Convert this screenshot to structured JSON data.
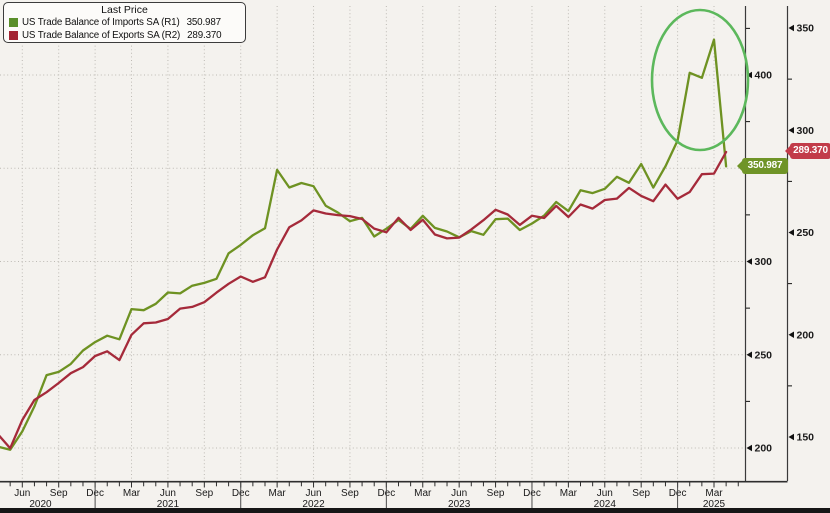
{
  "legend": {
    "title": "Last Price",
    "items": [
      {
        "label": "US Trade Balance of Imports SA  (R1)",
        "value": "350.987",
        "swatch_color": "#5a8f2a"
      },
      {
        "label": "US Trade Balance of Exports SA  (R2)",
        "value": "289.370",
        "swatch_color": "#a32433"
      }
    ]
  },
  "badges": {
    "imports_last": "350.987",
    "exports_last": "289.370",
    "imports_bg": "#6f9427",
    "exports_bg": "#c23b49"
  },
  "colors": {
    "background": "#f4f2ee",
    "grid": "#bdbab4",
    "axis": "#3a3a3a",
    "tick_text": "#1a1a1a",
    "annotation": "#5cb85c"
  },
  "chart_data": {
    "type": "line",
    "title": "Last Price",
    "frequency": "monthly",
    "x_months": [
      "2020-04",
      "2020-05",
      "2020-06",
      "2020-07",
      "2020-08",
      "2020-09",
      "2020-10",
      "2020-11",
      "2020-12",
      "2021-01",
      "2021-02",
      "2021-03",
      "2021-04",
      "2021-05",
      "2021-06",
      "2021-07",
      "2021-08",
      "2021-09",
      "2021-10",
      "2021-11",
      "2021-12",
      "2022-01",
      "2022-02",
      "2022-03",
      "2022-04",
      "2022-05",
      "2022-06",
      "2022-07",
      "2022-08",
      "2022-09",
      "2022-10",
      "2022-11",
      "2022-12",
      "2023-01",
      "2023-02",
      "2023-03",
      "2023-04",
      "2023-05",
      "2023-06",
      "2023-07",
      "2023-08",
      "2023-09",
      "2023-10",
      "2023-11",
      "2023-12",
      "2024-01",
      "2024-02",
      "2024-03",
      "2024-04",
      "2024-05",
      "2024-06",
      "2024-07",
      "2024-08",
      "2024-09",
      "2024-10",
      "2024-11",
      "2024-12",
      "2025-01",
      "2025-02",
      "2025-03",
      "2025-04"
    ],
    "series": [
      {
        "name": "US Trade Balance of Imports SA",
        "axis": "R1",
        "color": "#6e9222",
        "last_price": 350.987,
        "values": [
          200.7,
          199.1,
          208.9,
          222.3,
          239.1,
          240.8,
          245.1,
          252.3,
          256.8,
          260.2,
          258.3,
          274.5,
          273.9,
          277.3,
          283.4,
          282.9,
          287.0,
          288.5,
          290.7,
          304.4,
          308.9,
          314.1,
          317.8,
          349.1,
          339.7,
          342.1,
          340.4,
          329.9,
          326.3,
          321.6,
          323.4,
          313.4,
          317.6,
          322.3,
          317.5,
          324.5,
          318.0,
          316.1,
          313.0,
          316.3,
          314.3,
          322.7,
          323.0,
          316.9,
          320.4,
          324.6,
          331.9,
          327.0,
          338.2,
          336.7,
          339.0,
          345.4,
          342.2,
          352.3,
          339.6,
          351.1,
          364.9,
          401.2,
          398.5,
          419.0,
          350.987
        ]
      },
      {
        "name": "US Trade Balance of Exports SA",
        "axis": "R2",
        "color": "#a52a3a",
        "last_price": 289.37,
        "values": [
          151.3,
          144.5,
          158.3,
          168.1,
          171.9,
          176.4,
          181.2,
          184.2,
          189.6,
          191.9,
          187.6,
          200.0,
          205.6,
          206.0,
          207.7,
          212.8,
          213.6,
          215.9,
          220.6,
          224.9,
          228.5,
          225.9,
          228.1,
          241.7,
          252.6,
          255.9,
          260.8,
          259.3,
          258.5,
          258.0,
          256.6,
          251.9,
          250.1,
          257.2,
          251.2,
          256.2,
          249.0,
          247.1,
          247.5,
          251.5,
          256.0,
          261.1,
          258.8,
          253.7,
          258.2,
          257.1,
          263.0,
          257.6,
          263.7,
          261.7,
          265.9,
          266.6,
          271.8,
          267.9,
          265.3,
          273.4,
          266.5,
          269.8,
          278.5,
          278.8,
          289.37
        ]
      }
    ],
    "axes": {
      "right_inner": {
        "id": "R1",
        "for_series": "Imports",
        "major_ticks": [
          200,
          250,
          300,
          350,
          400
        ],
        "minor_ticks": [
          225,
          275,
          325,
          375,
          425
        ],
        "approx_value_range": [
          182,
          436
        ]
      },
      "right_outer": {
        "id": "R2",
        "for_series": "Exports",
        "major_ticks": [
          150,
          200,
          250,
          300,
          350
        ],
        "minor_ticks": [
          175,
          225,
          275,
          325
        ],
        "approx_value_range": [
          130,
          360
        ]
      }
    },
    "x_axis": {
      "quarter_labels": [
        "Jun",
        "Sep",
        "Dec",
        "Mar",
        "Jun",
        "Sep",
        "Dec",
        "Mar",
        "Jun",
        "Sep",
        "Dec",
        "Mar",
        "Jun",
        "Sep",
        "Dec",
        "Mar",
        "Jun",
        "Sep",
        "Dec",
        "Mar"
      ],
      "year_labels": [
        "2020",
        "2021",
        "2022",
        "2023",
        "2024",
        "2025"
      ]
    },
    "grid": "dotted, vertical each quarter, horizontal each 50 units of R1",
    "legend_position": "top-left",
    "annotation": {
      "shape": "ellipse",
      "color": "#5cb85c",
      "highlights": "imports spike Jan-Mar 2025 and collapse to 350.987"
    }
  }
}
